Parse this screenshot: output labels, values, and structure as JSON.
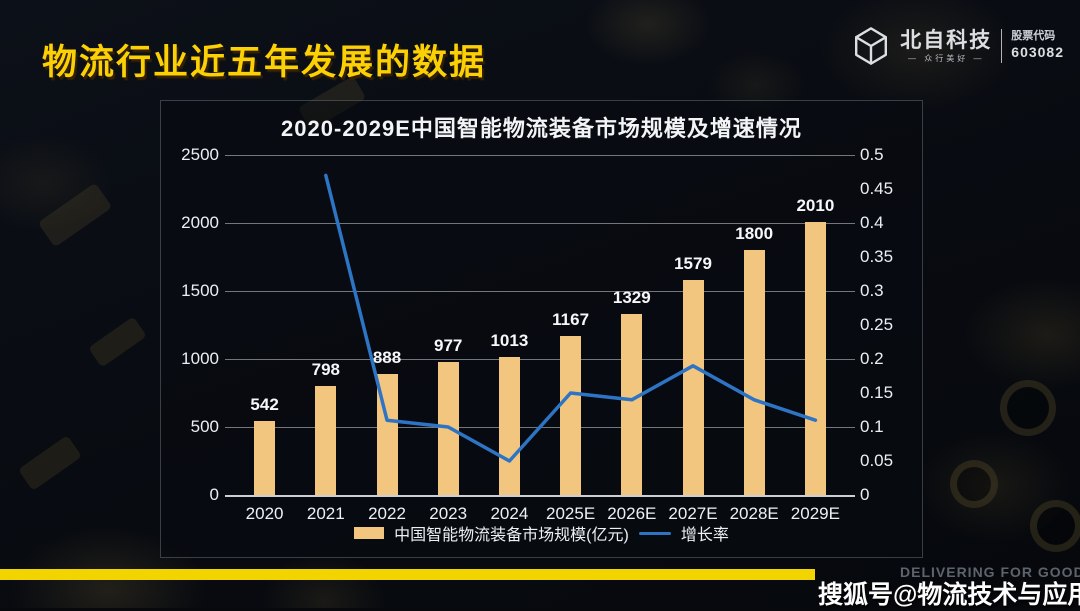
{
  "slide": {
    "title": "物流行业近五年发展的数据",
    "watermark": "搜狐号@物流技术与应用",
    "footer_tagline": "DELIVERING FOR GOOD"
  },
  "logo": {
    "company": "北自科技",
    "slogan": "— 众行美好 —",
    "stock_label": "股票代码",
    "stock_code": "603082"
  },
  "chart_data": {
    "type": "bar+line",
    "title": "2020-2029E中国智能物流装备市场规模及增速情况",
    "categories": [
      "2020",
      "2021",
      "2022",
      "2023",
      "2024",
      "2025E",
      "2026E",
      "2027E",
      "2028E",
      "2029E"
    ],
    "series": [
      {
        "name": "中国智能物流装备市场规模(亿元)",
        "type": "bar",
        "axis": "left",
        "color": "#f2c67f",
        "values": [
          542,
          798,
          888,
          977,
          1013,
          1167,
          1329,
          1579,
          1800,
          2010
        ]
      },
      {
        "name": "增长率",
        "type": "line",
        "axis": "right",
        "color": "#2e74c4",
        "values": [
          null,
          0.47,
          0.11,
          0.1,
          0.05,
          0.15,
          0.14,
          0.19,
          0.14,
          0.11
        ]
      }
    ],
    "left_axis": {
      "min": 0,
      "max": 2500,
      "ticks": [
        0,
        500,
        1000,
        1500,
        2000,
        2500
      ]
    },
    "right_axis": {
      "min": 0,
      "max": 0.5,
      "ticks": [
        0,
        0.05,
        0.1,
        0.15,
        0.2,
        0.25,
        0.3,
        0.35,
        0.4,
        0.45,
        0.5
      ]
    },
    "grid": true,
    "legend_position": "bottom"
  }
}
